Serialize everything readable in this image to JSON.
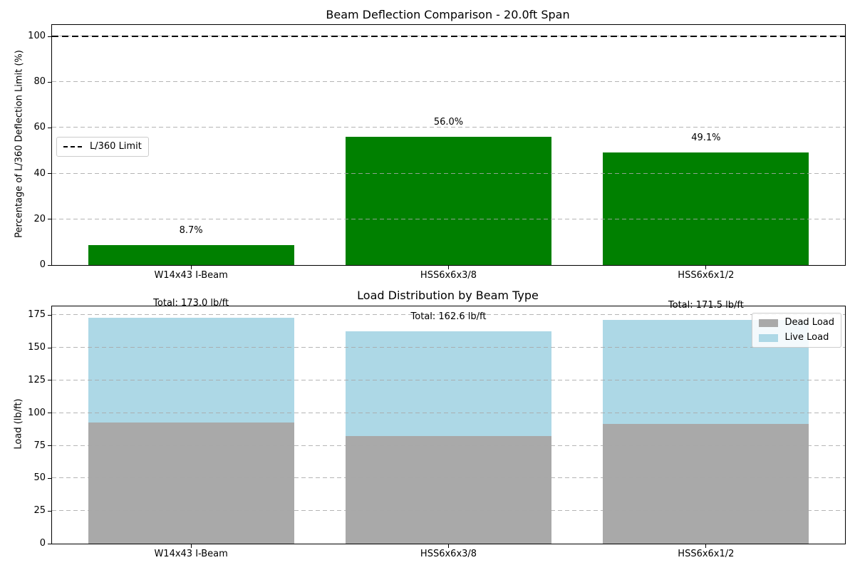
{
  "figure": {
    "background": "#ffffff",
    "text_color": "#000000",
    "grid_color": "#b0b0b0"
  },
  "chart_data": [
    {
      "type": "bar",
      "title": "Beam Deflection Comparison - 20.0ft Span",
      "xlabel": "",
      "ylabel": "Percentage of L/360 Deflection Limit (%)",
      "categories": [
        "W14x43 I-Beam",
        "HSS6x6x3/8",
        "HSS6x6x1/2"
      ],
      "values": [
        8.7,
        56.0,
        49.1
      ],
      "bar_labels": [
        "8.7%",
        "56.0%",
        "49.1%"
      ],
      "bar_color": "#008000",
      "ylim": [
        0,
        105
      ],
      "xlim": [
        -0.54,
        2.54
      ],
      "bar_width": 0.8,
      "yticks": [
        0,
        20,
        40,
        60,
        80,
        100
      ],
      "grid": true,
      "limit_line": {
        "value": 100,
        "label": "L/360 Limit",
        "color": "#000000",
        "style": "dashed"
      },
      "legend": {
        "position": "center-left",
        "items": [
          {
            "label": "L/360 Limit",
            "swatch": "line",
            "color": "#000000"
          }
        ]
      }
    },
    {
      "type": "stacked-bar",
      "title": "Load Distribution by Beam Type",
      "xlabel": "",
      "ylabel": "Load (lb/ft)",
      "categories": [
        "W14x43 I-Beam",
        "HSS6x6x3/8",
        "HSS6x6x1/2"
      ],
      "series": [
        {
          "name": "Dead Load",
          "values": [
            93.0,
            82.6,
            91.5
          ],
          "color": "#a9a9a9"
        },
        {
          "name": "Live Load",
          "values": [
            80.0,
            80.0,
            80.0
          ],
          "color": "#add8e6"
        }
      ],
      "totals": [
        173.0,
        162.6,
        171.5
      ],
      "total_labels": [
        "Total: 173.0 lb/ft",
        "Total: 162.6 lb/ft",
        "Total: 171.5 lb/ft"
      ],
      "ylim": [
        0,
        181.65
      ],
      "xlim": [
        -0.54,
        2.54
      ],
      "bar_width": 0.8,
      "yticks": [
        0,
        25,
        50,
        75,
        100,
        125,
        150,
        175
      ],
      "grid": true,
      "legend": {
        "position": "top-right",
        "items": [
          {
            "label": "Dead Load",
            "swatch": "patch",
            "color": "#a9a9a9"
          },
          {
            "label": "Live Load",
            "swatch": "patch",
            "color": "#add8e6"
          }
        ]
      }
    }
  ]
}
